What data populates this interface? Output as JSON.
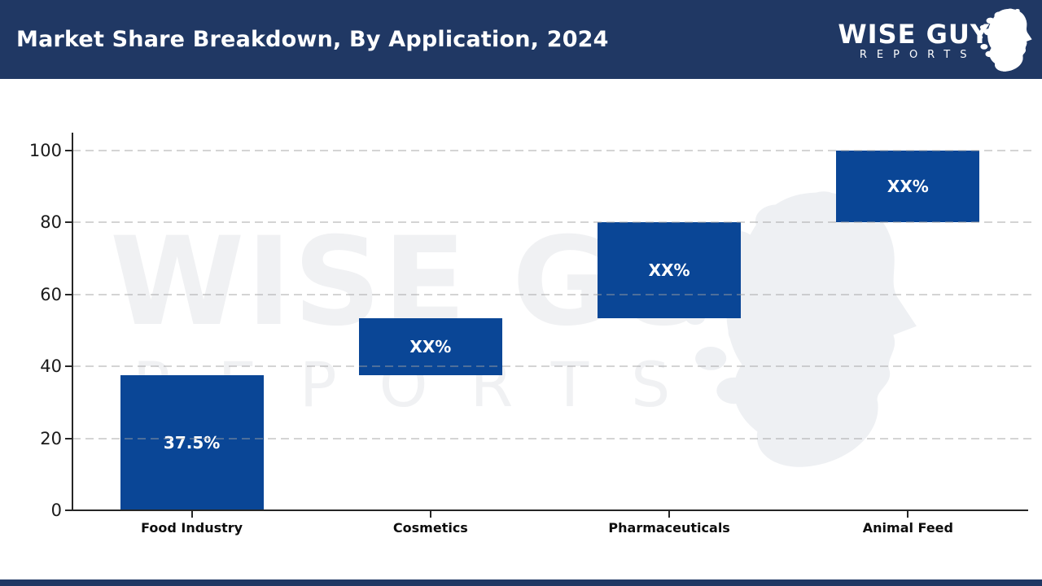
{
  "header": {
    "title": "Market Share Breakdown, By Application, 2024",
    "bg_color": "#203864",
    "logo": {
      "line1": "WISE GUY",
      "line2": "REPORTS"
    }
  },
  "watermark": {
    "line1": "WISE GUY",
    "line2": "REPORTS"
  },
  "footer": {
    "bar_color": "#203864"
  },
  "chart_data": {
    "type": "bar",
    "subtype": "waterfall",
    "title": "Market Share Breakdown, By Application, 2024",
    "categories": [
      "Food Industry",
      "Cosmetics",
      "Pharmaceuticals",
      "Animal Feed"
    ],
    "segments": [
      {
        "label": "37.5%",
        "start": 0,
        "end": 37.5
      },
      {
        "label": "XX%",
        "start": 37.5,
        "end": 53.5
      },
      {
        "label": "XX%",
        "start": 53.5,
        "end": 80
      },
      {
        "label": "XX%",
        "start": 80,
        "end": 100
      }
    ],
    "yticks": [
      0,
      20,
      40,
      60,
      80,
      100
    ],
    "ylim": [
      0,
      105
    ],
    "xlabel": "",
    "ylabel": "",
    "grid": "dashed-horizontal",
    "legend": "none",
    "bar_color": "#0a4696",
    "grid_color": "#d9d9d9",
    "axis_color": "#262626"
  }
}
